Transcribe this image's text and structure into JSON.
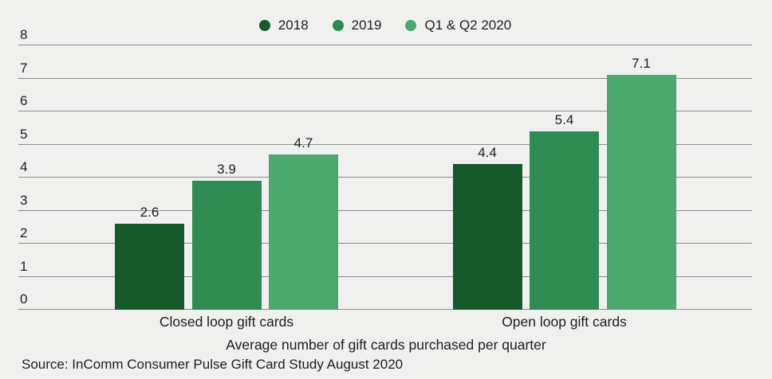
{
  "colors": {
    "background": "#F0F1EF",
    "grid": "#8C8C8C",
    "text": "#1D1D1D"
  },
  "chart_data": {
    "type": "bar",
    "categories": [
      "Closed loop gift cards",
      "Open loop gift cards"
    ],
    "series": [
      {
        "name": "2018",
        "color": "#16592B",
        "values": [
          2.6,
          4.4
        ]
      },
      {
        "name": "2019",
        "color": "#2E8B52",
        "values": [
          3.9,
          5.4
        ]
      },
      {
        "name": "Q1 & Q2 2020",
        "color": "#4CA86F",
        "values": [
          4.7,
          7.1
        ]
      }
    ],
    "title": "",
    "xlabel": "Average number of gift cards purchased per quarter",
    "ylabel": "",
    "ylim": [
      0,
      8
    ],
    "ytick_step": 1,
    "yticks": [
      "0",
      "1",
      "2",
      "3",
      "4",
      "5",
      "6",
      "7",
      "8"
    ],
    "grid": true,
    "legend_position": "top",
    "data_labels": [
      "2.6",
      "3.9",
      "4.7",
      "4.4",
      "5.4",
      "7.1"
    ]
  },
  "source": "Source: InComm Consumer Pulse Gift Card Study August 2020"
}
